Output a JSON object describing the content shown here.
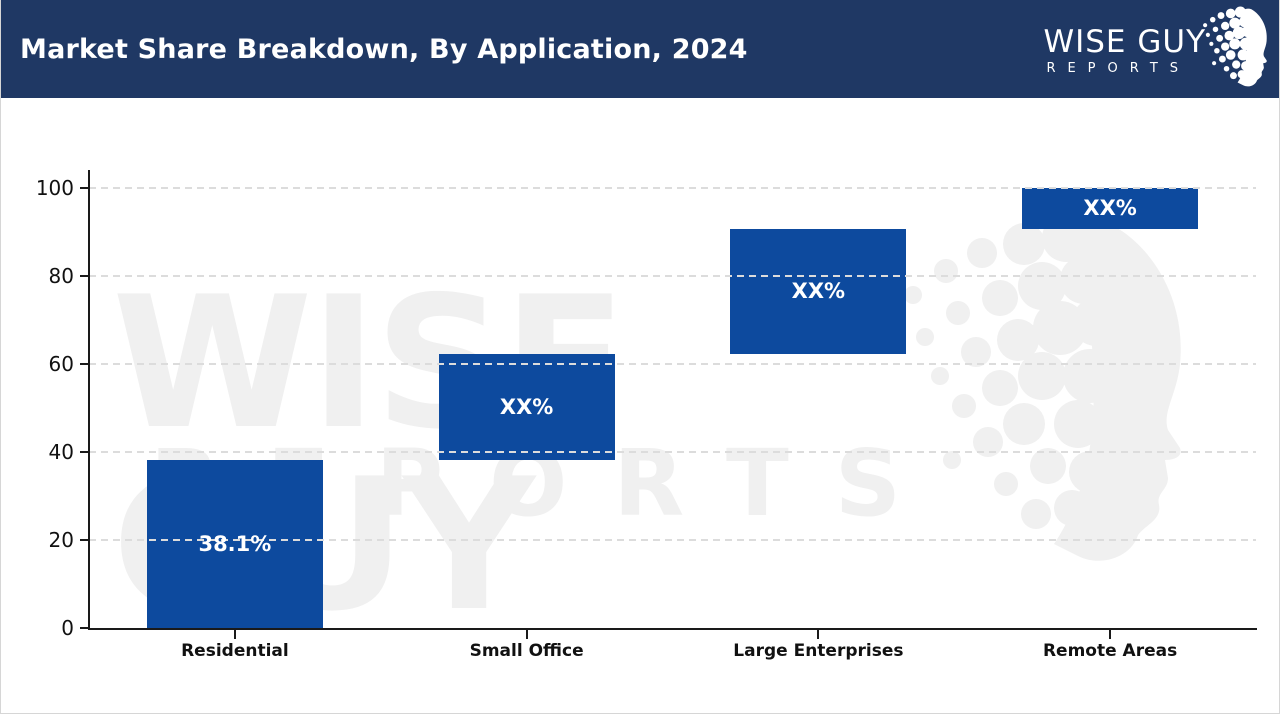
{
  "header": {
    "title": "Market Share Breakdown, By Application, 2024",
    "logo": {
      "line1": "WISE GUY",
      "line2": "REPORTS"
    }
  },
  "watermark": {
    "line1": "WISE GUY",
    "line2": "REPORTS"
  },
  "colors": {
    "header_bg": "#1f3864",
    "bar": "#0d4a9e",
    "bar_label": "#ffffff",
    "grid": "#dcdcdc",
    "axis": "#1a1a1a",
    "watermark": "#f0f0f0",
    "page_border": "#d6d6d6"
  },
  "chart_data": {
    "type": "bar",
    "subtype": "floating-waterfall",
    "title": "Market Share Breakdown, By Application, 2024",
    "categories": [
      "Residential",
      "Small Office",
      "Large Enterprises",
      "Remote Areas"
    ],
    "segments": [
      {
        "category": "Residential",
        "start": 0,
        "end": 38.1,
        "label": "38.1%"
      },
      {
        "category": "Small Office",
        "start": 38.1,
        "end": 62.2,
        "label": "XX%"
      },
      {
        "category": "Large Enterprises",
        "start": 62.2,
        "end": 90.7,
        "label": "XX%"
      },
      {
        "category": "Remote Areas",
        "start": 90.7,
        "end": 100,
        "label": "XX%"
      }
    ],
    "ylim": [
      0,
      104
    ],
    "yticks": [
      0,
      20,
      40,
      60,
      80,
      100
    ],
    "xlabel": "",
    "ylabel": "",
    "grid": "horizontal-dashed",
    "legend": "none"
  }
}
